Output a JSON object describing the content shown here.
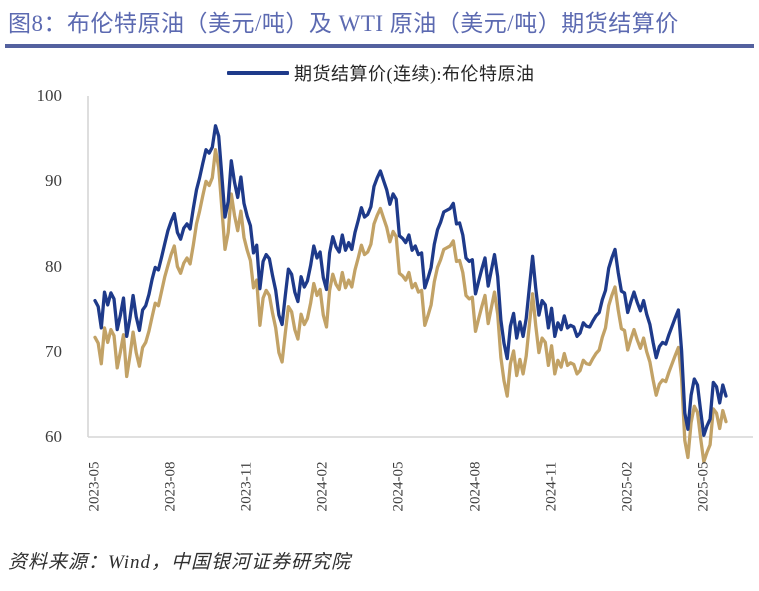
{
  "header": {
    "title": "图8：布伦特原油（美元/吨）及 WTI 原油（美元/吨）期货结算价"
  },
  "legend": {
    "label": "期货结算价(连续):布伦特原油"
  },
  "footer": {
    "source": "资料来源：Wind，中国银河证券研究院"
  },
  "colors": {
    "title": "#5c6ab1",
    "divider": "#54619f",
    "axis": "#d6d6d6",
    "tick_text": "#3d3d3d",
    "brent_line": "#1e3a8a",
    "wti_line": "#c2a266"
  },
  "chart_data": {
    "type": "line",
    "title": "布伦特原油（美元/吨）及 WTI 原油（美元/吨）期货结算价",
    "xlabel": "",
    "ylabel": "",
    "ylim": [
      60,
      100
    ],
    "yticks": [
      60,
      70,
      80,
      90,
      100
    ],
    "grid": false,
    "legend_position": "top",
    "legend_entries": [
      "期货结算价(连续):布伦特原油"
    ],
    "xtick_labels": [
      "2023-05",
      "2023-08",
      "2023-11",
      "2024-02",
      "2024-05",
      "2024-08",
      "2024-11",
      "2025-02",
      "2025-05"
    ],
    "points_per_month": 8,
    "months_per_xtick": 3,
    "series": [
      {
        "name": "期货结算价(连续):WTI原油（美元/吨）",
        "color": "#c2a266",
        "values": [
          71.7,
          71.0,
          68.6,
          72.8,
          71.1,
          72.6,
          71.9,
          68.1,
          70.0,
          72.0,
          67.1,
          69.5,
          72.3,
          69.9,
          68.3,
          70.5,
          71.1,
          72.4,
          74.1,
          75.7,
          75.4,
          77.1,
          78.8,
          80.1,
          81.4,
          82.4,
          80.0,
          79.2,
          80.4,
          81.0,
          80.3,
          82.5,
          85.0,
          86.5,
          88.3,
          90.0,
          89.5,
          90.4,
          93.7,
          91.6,
          86.9,
          82.0,
          84.0,
          88.5,
          86.0,
          84.2,
          86.5,
          83.4,
          81.9,
          80.7,
          77.5,
          78.4,
          73.1,
          76.3,
          77.2,
          76.6,
          74.5,
          72.8,
          69.9,
          68.8,
          72.2,
          75.3,
          74.7,
          72.6,
          71.5,
          74.4,
          73.2,
          73.9,
          75.7,
          78.0,
          76.6,
          77.3,
          74.3,
          72.9,
          77.2,
          79.1,
          77.9,
          77.3,
          79.3,
          77.5,
          78.4,
          77.6,
          79.6,
          81.0,
          82.5,
          81.4,
          81.7,
          82.6,
          85.0,
          86.0,
          86.8,
          85.7,
          84.6,
          82.9,
          84.1,
          83.5,
          79.2,
          78.9,
          78.4,
          79.3,
          77.5,
          78.0,
          77.0,
          77.2,
          73.1,
          74.2,
          75.5,
          78.2,
          79.9,
          80.8,
          82.0,
          82.2,
          82.4,
          83.0,
          80.6,
          80.7,
          79.3,
          76.6,
          76.2,
          76.4,
          72.4,
          73.9,
          75.3,
          76.6,
          73.3,
          75.2,
          77.0,
          74.4,
          69.3,
          66.6,
          64.8,
          68.6,
          70.1,
          67.2,
          69.1,
          67.4,
          69.5,
          73.2,
          76.8,
          73.1,
          69.9,
          71.6,
          71.1,
          68.4,
          70.7,
          67.4,
          69.0,
          68.2,
          69.8,
          68.4,
          68.7,
          68.5,
          67.4,
          67.8,
          69.0,
          68.6,
          68.5,
          69.2,
          69.8,
          70.2,
          71.7,
          72.8,
          75.4,
          76.6,
          77.6,
          74.9,
          72.7,
          72.5,
          70.2,
          71.5,
          72.6,
          71.4,
          70.4,
          71.6,
          70.0,
          68.8,
          66.7,
          64.9,
          66.2,
          66.7,
          66.5,
          67.6,
          68.6,
          69.6,
          70.5,
          66.9,
          59.6,
          57.6,
          61.7,
          63.6,
          62.9,
          59.9,
          57.1,
          58.2,
          59.1,
          63.3,
          62.8,
          61.0,
          63.1,
          61.8
        ]
      },
      {
        "name": "期货结算价(连续):布伦特原油",
        "color": "#1e3a8a",
        "values": [
          76.0,
          75.3,
          72.8,
          77.0,
          75.5,
          76.9,
          76.2,
          72.6,
          74.3,
          76.3,
          71.8,
          73.9,
          76.6,
          74.1,
          72.5,
          74.9,
          75.4,
          76.7,
          78.5,
          79.9,
          79.6,
          81.1,
          82.7,
          84.2,
          85.3,
          86.2,
          84.0,
          83.2,
          84.5,
          85.0,
          84.4,
          86.8,
          89.0,
          90.4,
          92.1,
          93.7,
          93.3,
          94.0,
          96.5,
          95.3,
          90.7,
          85.8,
          87.6,
          92.4,
          89.9,
          88.1,
          90.5,
          87.4,
          85.9,
          84.8,
          81.6,
          82.5,
          77.4,
          80.6,
          81.4,
          80.9,
          78.9,
          77.2,
          74.3,
          73.2,
          76.6,
          79.7,
          79.1,
          77.0,
          75.9,
          78.8,
          77.6,
          78.3,
          80.1,
          82.4,
          81.0,
          81.7,
          78.7,
          77.3,
          81.6,
          83.5,
          82.3,
          81.7,
          83.7,
          81.9,
          82.8,
          82.0,
          84.0,
          85.4,
          86.9,
          85.8,
          86.1,
          87.0,
          89.4,
          90.4,
          91.2,
          90.1,
          89.0,
          87.3,
          88.5,
          87.9,
          83.6,
          83.3,
          82.8,
          83.7,
          81.9,
          82.4,
          81.4,
          81.6,
          77.5,
          78.6,
          79.9,
          82.6,
          84.3,
          85.2,
          86.4,
          86.6,
          86.8,
          87.4,
          85.0,
          85.1,
          83.7,
          81.0,
          80.6,
          80.8,
          76.8,
          78.3,
          79.7,
          81.0,
          77.7,
          79.6,
          81.4,
          78.8,
          73.7,
          71.0,
          69.2,
          73.0,
          74.5,
          71.6,
          73.5,
          71.8,
          73.9,
          77.6,
          81.2,
          77.5,
          74.3,
          76.0,
          75.5,
          72.8,
          75.1,
          71.8,
          73.4,
          72.6,
          74.2,
          72.8,
          73.1,
          72.9,
          71.8,
          72.2,
          73.4,
          73.0,
          72.9,
          73.6,
          74.2,
          74.6,
          76.1,
          77.2,
          79.8,
          81.0,
          82.0,
          79.3,
          77.1,
          76.9,
          74.6,
          75.9,
          77.0,
          75.8,
          74.8,
          76.0,
          74.4,
          73.2,
          71.1,
          69.3,
          70.6,
          71.1,
          70.9,
          72.0,
          73.0,
          74.0,
          74.9,
          70.1,
          62.8,
          60.9,
          64.9,
          66.8,
          66.1,
          63.1,
          60.2,
          61.3,
          62.1,
          66.4,
          65.9,
          64.0,
          66.1,
          64.8
        ]
      }
    ]
  }
}
